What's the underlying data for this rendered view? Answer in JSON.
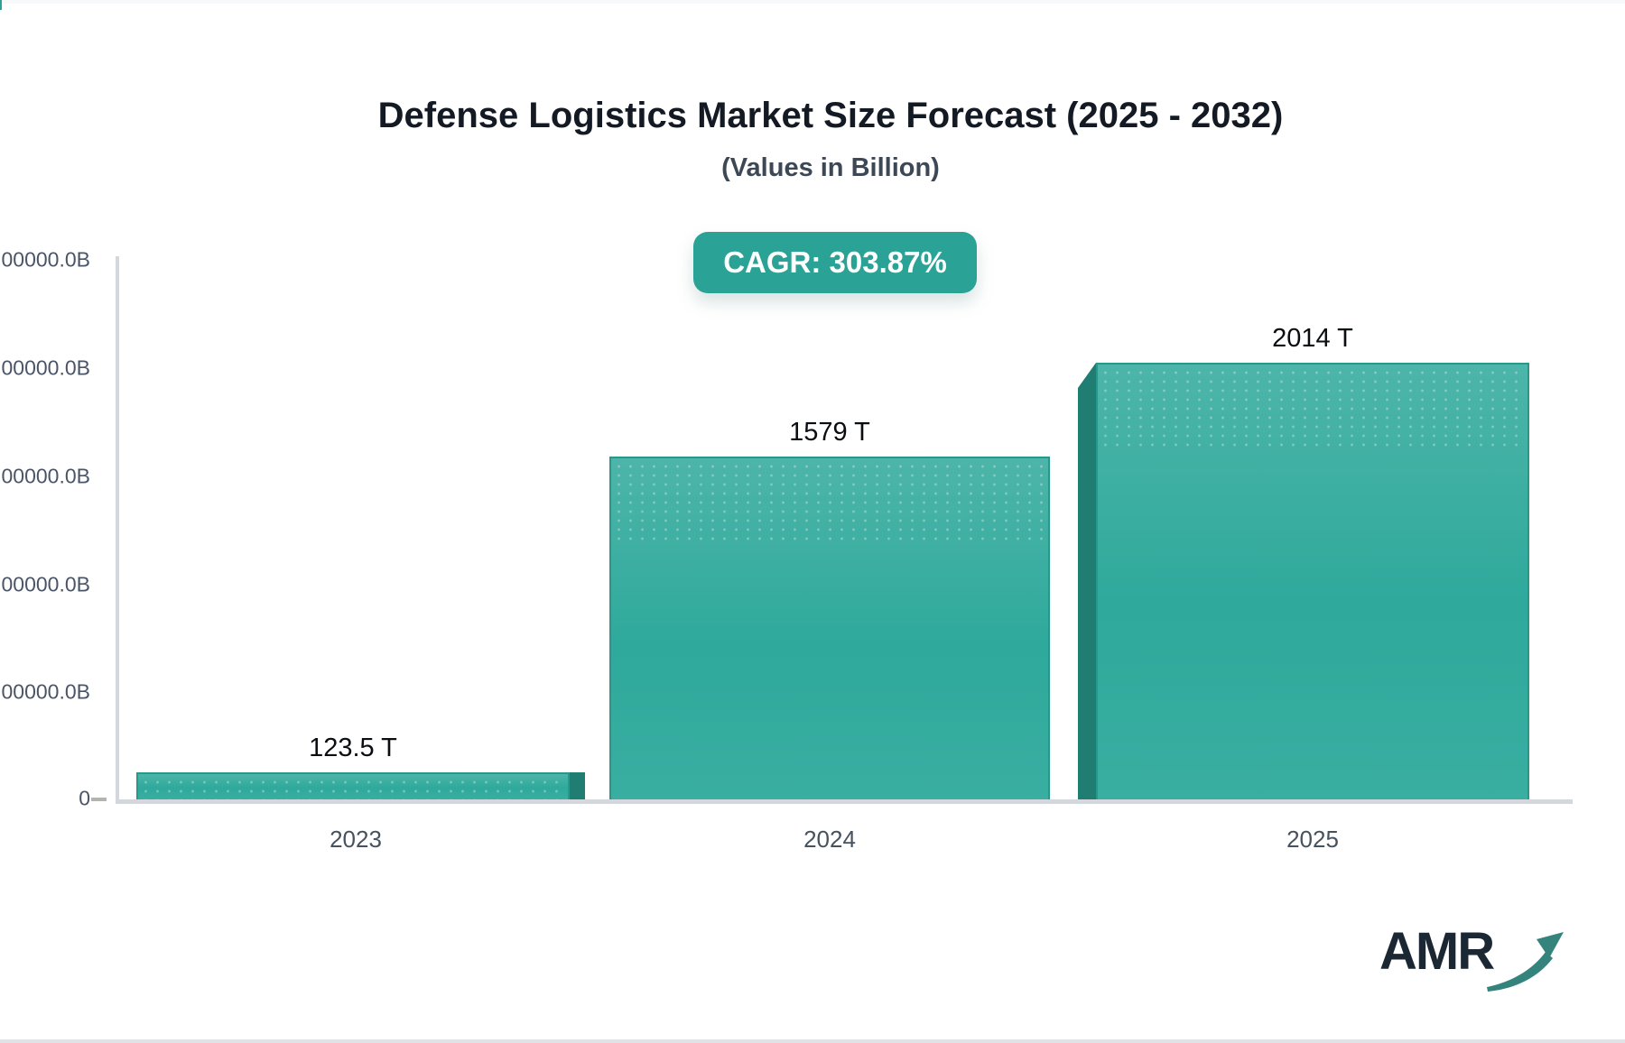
{
  "title": "Defense Logistics Market Size Forecast (2025 - 2032)",
  "subtitle": "(Values in Billion)",
  "cagr_badge": "CAGR: 303.87%",
  "colors": {
    "bar_fill": "#2ea99b",
    "bar_border": "#27988b",
    "bar_side_face": "#1f7d71",
    "badge_bg": "#2aa296",
    "axis_line": "#d4d7dc",
    "tick_text": "#4a5568",
    "logo_text": "#1b2733",
    "logo_arrow": "#35837d"
  },
  "chart_data": {
    "type": "bar",
    "categories": [
      "2023",
      "2024",
      "2025"
    ],
    "values": [
      123500,
      1579000,
      2014000
    ],
    "value_labels": [
      "123.5 T",
      "1579 T",
      "2014 T"
    ],
    "unit": "Billion",
    "ylim": [
      0,
      2500000
    ],
    "y_ticks_visible": [
      "00000.0B",
      "00000.0B",
      "00000.0B",
      "00000.0B",
      "00000.0B",
      "0"
    ],
    "grid": false,
    "legend": false
  },
  "logo": {
    "text": "AMR"
  }
}
